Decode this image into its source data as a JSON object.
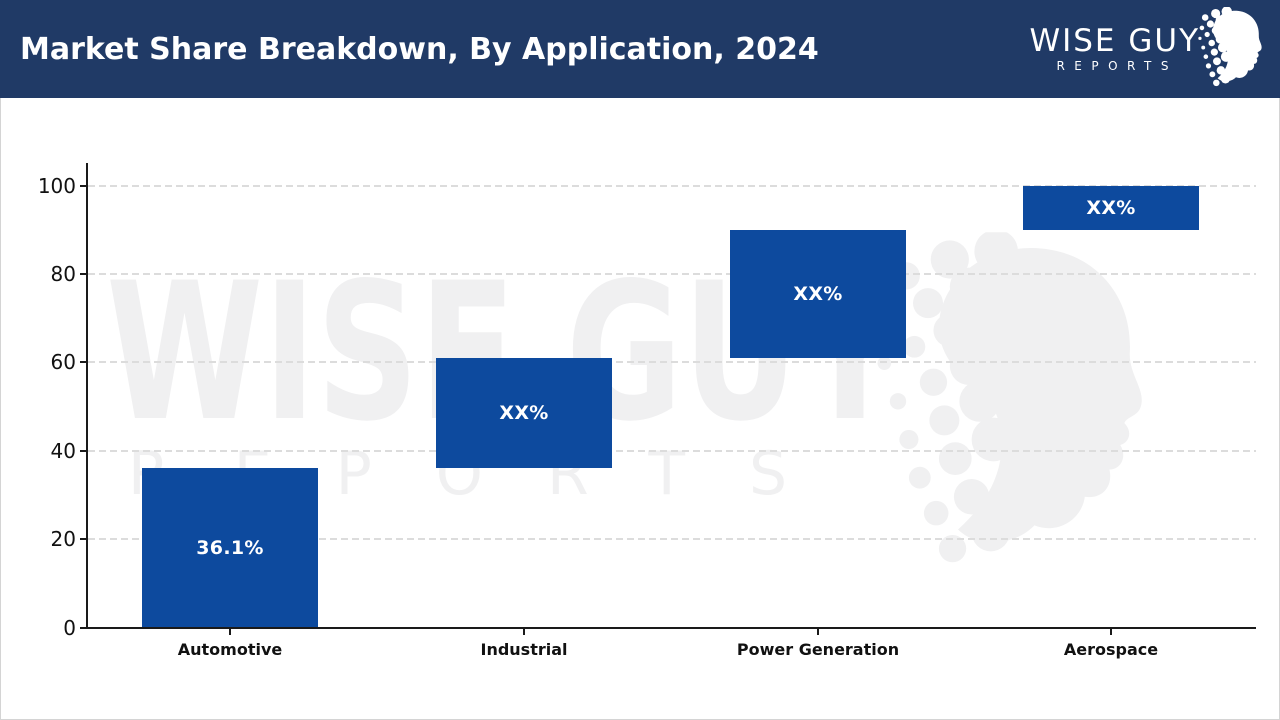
{
  "header": {
    "title": "Market Share Breakdown, By Application, 2024",
    "logo": {
      "name": "WISE GUY",
      "tagline": "REPORTS"
    }
  },
  "watermark": {
    "name": "WISE GUY",
    "tagline": "REPORTS"
  },
  "chart_data": {
    "type": "bar",
    "variant": "waterfall",
    "title": "Market Share Breakdown, By Application, 2024",
    "categories": [
      "Automotive",
      "Industrial",
      "Power Generation",
      "Aerospace"
    ],
    "segments": [
      {
        "category": "Automotive",
        "start": 0,
        "end": 36.1,
        "label": "36.1%"
      },
      {
        "category": "Industrial",
        "start": 36.1,
        "end": 61,
        "label": "XX%"
      },
      {
        "category": "Power Generation",
        "start": 61,
        "end": 90,
        "label": "XX%"
      },
      {
        "category": "Aerospace",
        "start": 90,
        "end": 100,
        "label": "XX%"
      }
    ],
    "y_ticks": [
      0,
      20,
      40,
      60,
      80,
      100
    ],
    "ylim": [
      0,
      105
    ],
    "xlabel": "",
    "ylabel": "",
    "legend": "none",
    "grid": "horizontal-dashed",
    "bar_color": "#0d4a9e",
    "bar_label_color": "#ffffff"
  },
  "colors": {
    "header_bg": "#203a66",
    "background": "#ffffff",
    "watermark": "#f0f0f1",
    "grid": "#dcdcdc",
    "axis": "#1a1a1a",
    "tick_text": "#111111",
    "border": "#d4d4d4"
  }
}
